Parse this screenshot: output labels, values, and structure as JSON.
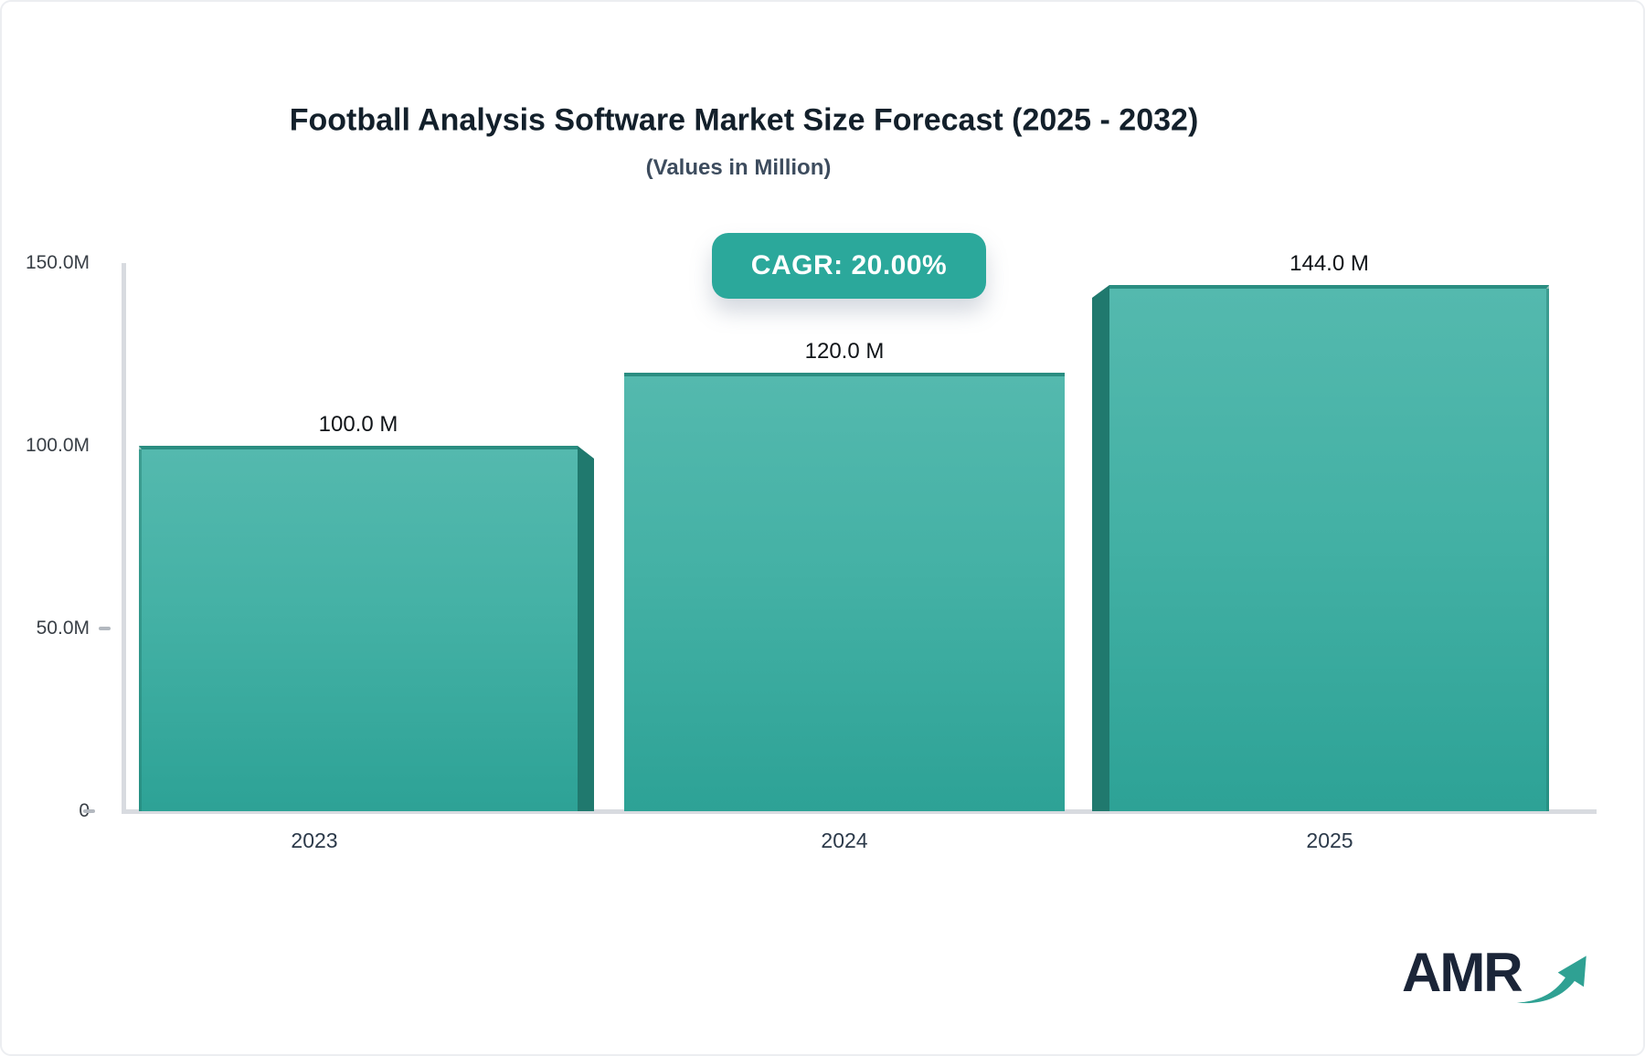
{
  "title": "Football Analysis Software Market Size Forecast (2025 - 2032)",
  "subtitle": "(Values in Million)",
  "badge": {
    "label": "CAGR: 20.00%"
  },
  "logo": {
    "text": "AMR"
  },
  "icons": {
    "logo_arrow": "growth-arrow-icon"
  },
  "colors": {
    "bar_top": "#54b9ae",
    "bar_bottom": "#2da296",
    "bar_edge": "#2a8d81",
    "bar_side_face": "#20796e",
    "badge_bg": "#2ba89b",
    "arrow": "#2fa193",
    "axis": "#d8dbe0",
    "title_text": "#13202b",
    "logo_text": "#1b2538"
  },
  "chart_data": {
    "type": "bar",
    "title": "Football Analysis Software Market Size Forecast (2025 - 2032)",
    "subtitle": "(Values in Million)",
    "categories": [
      "2023",
      "2024",
      "2025"
    ],
    "values": [
      100,
      120,
      144
    ],
    "value_labels": [
      "100.0 M",
      "120.0 M",
      "144.0 M"
    ],
    "unit": "Million",
    "cagr": "20.00%",
    "xlabel": "",
    "ylabel": "",
    "ylim": [
      0,
      150
    ],
    "y_ticks": [
      {
        "value": 0,
        "label": "0",
        "has_dash": true
      },
      {
        "value": 50,
        "label": "50.0M",
        "has_dash": true
      },
      {
        "value": 100,
        "label": "100.0M",
        "has_dash": false
      },
      {
        "value": 150,
        "label": "150.0M",
        "has_dash": false
      }
    ],
    "grid": false,
    "legend": false
  }
}
